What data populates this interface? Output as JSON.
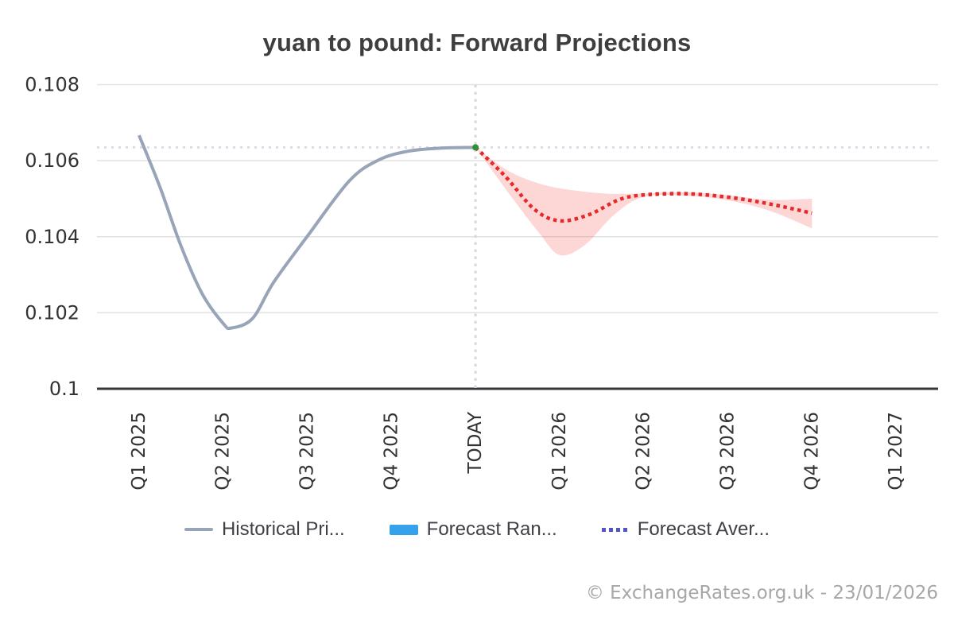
{
  "title": "yuan to pound: Forward Projections",
  "watermark": "© ExchangeRates.org.uk - 23/01/2026",
  "legend": {
    "items": [
      {
        "label": "Historical Pri...",
        "swatch": "line",
        "color": "#98a4b8"
      },
      {
        "label": "Forecast Ran...",
        "swatch": "rect",
        "color": "#36a2eb"
      },
      {
        "label": "Forecast Aver...",
        "swatch": "dotted",
        "color": "#5353cb"
      }
    ]
  },
  "chart_data": {
    "type": "line",
    "title": "yuan to pound: Forward Projections",
    "categories": [
      "Q1 2025",
      "Q2 2025",
      "Q3 2025",
      "Q4 2025",
      "TODAY",
      "Q1 2026",
      "Q2 2026",
      "Q3 2026",
      "Q4 2026",
      "Q1 2027"
    ],
    "y_axis": {
      "min": 0.1,
      "max": 0.108,
      "ticks": [
        0.108,
        0.106,
        0.104,
        0.102,
        0.1
      ],
      "tick_labels": [
        "0.108",
        "0.106",
        "0.104",
        "0.102",
        "0.1"
      ],
      "grid_color": "#e2e2e2",
      "axis_color": "#37373b",
      "tick_color": "#333333"
    },
    "legend_position": "bottom",
    "grid": true,
    "reference_line": {
      "value": 0.10635,
      "color": "#d9dceb",
      "note": "dotted level at last historical price"
    },
    "today_line": {
      "index": 4,
      "color": "#d8d8e0"
    },
    "marker": {
      "x": 4,
      "value": 0.10635,
      "color": "#2f8f3b",
      "radius": 4
    },
    "series": [
      {
        "name": "Historical Price",
        "type": "line",
        "color": "#98a4b8",
        "width": 4,
        "points": [
          [
            0,
            0.10667
          ],
          [
            0.25,
            0.1053
          ],
          [
            0.5,
            0.10375
          ],
          [
            0.75,
            0.1025
          ],
          [
            1,
            0.10172
          ],
          [
            1.1,
            0.1016
          ],
          [
            1.35,
            0.10185
          ],
          [
            1.6,
            0.1028
          ],
          [
            2,
            0.10401
          ],
          [
            2.5,
            0.10547
          ],
          [
            2.85,
            0.10602
          ],
          [
            3.2,
            0.10625
          ],
          [
            3.6,
            0.10633
          ],
          [
            4,
            0.10635
          ]
        ]
      },
      {
        "name": "Forecast Average",
        "type": "dotted-line",
        "color": "#dd1111",
        "width": 4.5,
        "points": [
          [
            4,
            0.10635
          ],
          [
            4.35,
            0.1056
          ],
          [
            4.7,
            0.10472
          ],
          [
            5,
            0.10442
          ],
          [
            5.35,
            0.10458
          ],
          [
            5.7,
            0.10497
          ],
          [
            6,
            0.1051
          ],
          [
            6.5,
            0.10513
          ],
          [
            7,
            0.10504
          ],
          [
            7.5,
            0.10486
          ],
          [
            8,
            0.10462
          ]
        ]
      },
      {
        "name": "Forecast Range",
        "type": "band",
        "color": "#f76b6b",
        "opacity": 0.28,
        "upper": [
          [
            4,
            0.10635
          ],
          [
            4.4,
            0.10572
          ],
          [
            4.8,
            0.10537
          ],
          [
            5.2,
            0.10521
          ],
          [
            5.6,
            0.10513
          ],
          [
            6,
            0.10514
          ],
          [
            6.5,
            0.10517
          ],
          [
            7,
            0.10509
          ],
          [
            7.5,
            0.10497
          ],
          [
            8,
            0.105
          ]
        ],
        "lower": [
          [
            4,
            0.10635
          ],
          [
            4.4,
            0.10513
          ],
          [
            4.75,
            0.10412
          ],
          [
            5,
            0.10352
          ],
          [
            5.3,
            0.10378
          ],
          [
            5.65,
            0.10458
          ],
          [
            6,
            0.10505
          ],
          [
            6.5,
            0.10508
          ],
          [
            7,
            0.10496
          ],
          [
            7.5,
            0.10468
          ],
          [
            8,
            0.10422
          ]
        ]
      }
    ],
    "key_values": {
      "historical": {
        "Q1 2025": 0.1067,
        "Q2 2025": 0.1016,
        "Q3 2025": 0.104,
        "Q4 2025": 0.1062,
        "TODAY": 0.1064
      },
      "forecast_average": {
        "TODAY": 0.1064,
        "Q1 2026": 0.1044,
        "Q2 2026": 0.1051,
        "Q3 2026": 0.105,
        "Q4 2026": 0.1046
      },
      "forecast_range_q1_2026": [
        0.1035,
        0.1052
      ],
      "forecast_range_q4_2026": [
        0.1042,
        0.105
      ]
    }
  }
}
